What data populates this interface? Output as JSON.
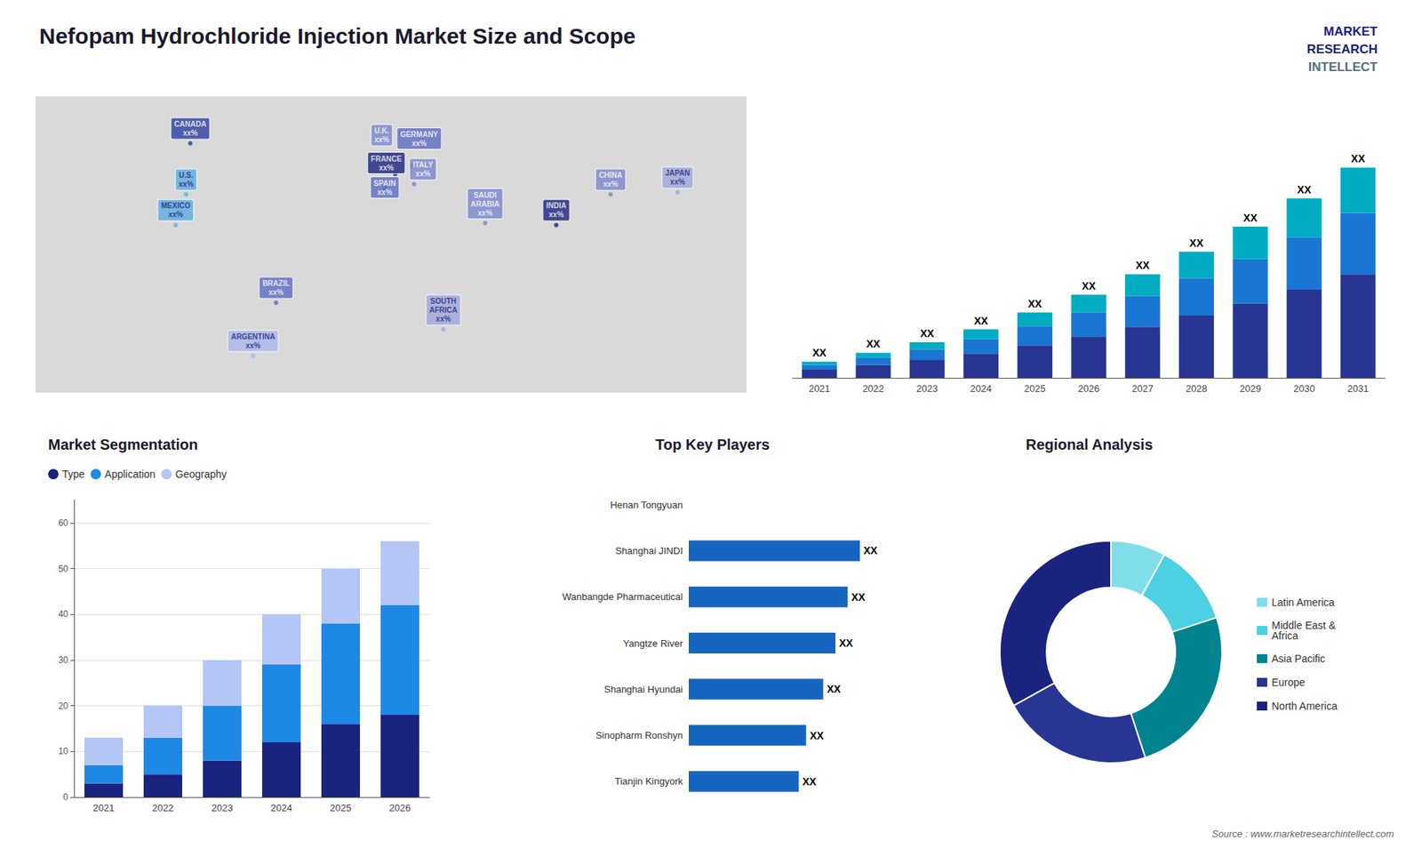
{
  "chart_data": [
    {
      "type": "map",
      "title": "Nefopam Hydrochloride Injection Market Size and Scope",
      "annotations": [
        "MARKET",
        "RESEARCH",
        "INTELLECT",
        "Source : www.marketresearchintellect.com"
      ],
      "categories": [
        "CANADA\nxx%",
        "U.S.\nxx%",
        "MEXICO\nxx%",
        "BRAZIL\nxx%",
        "ARGENTINA\nxx%",
        "FRANCE\nxx%",
        "SPAIN\nxx%",
        "U.K.\nxx%",
        "GERMANY\nxx%",
        "ITALY\nxx%",
        "SAUDI\nARABIA\nxx%",
        "SOUTH\nAFRICA\nxx%",
        "CHINA\nxx%",
        "INDIA\nxx%",
        "JAPAN\nxx%"
      ],
      "x": [
        -96,
        -98,
        -103,
        -55,
        -66,
        2,
        -3,
        -1,
        10,
        11,
        45,
        25,
        105,
        79,
        137
      ],
      "values": [
        62,
        37,
        22,
        -16,
        -42,
        47,
        40,
        56,
        51,
        42,
        23,
        -29,
        37,
        22,
        38
      ],
      "colors": [
        "#2c3e9e",
        "#5dade2",
        "#5dade2",
        "#5c6bc0",
        "#aab6ea",
        "#1a237e",
        "#5c6bc0",
        "#7986cb",
        "#5c6bc0",
        "#7986cb",
        "#7986cb",
        "#9fa8da",
        "#7986cb",
        "#1a237e",
        "#9fa8da"
      ],
      "color": "#d9d9d9",
      "xlim": [
        -170,
        170
      ],
      "ylim": [
        -60,
        85
      ],
      "tick_labels": false
    },
    {
      "type": "bar",
      "categories": [
        "2021",
        "2022",
        "2023",
        "2024",
        "2025",
        "2026",
        "2027",
        "2028",
        "2029",
        "2030",
        "2031"
      ],
      "series": [
        {
          "color": "#283593",
          "values": [
            1.0,
            1.6,
            2.2,
            3.0,
            4.0,
            5.1,
            6.3,
            7.7,
            9.2,
            10.9,
            12.8
          ]
        },
        {
          "color": "#1976d2",
          "values": [
            0.6,
            0.9,
            1.3,
            1.8,
            2.4,
            3.0,
            3.8,
            4.6,
            5.5,
            6.5,
            7.6
          ]
        },
        {
          "color": "#00acc1",
          "values": [
            0.4,
            0.6,
            0.9,
            1.2,
            1.7,
            2.2,
            2.7,
            3.3,
            4.0,
            4.8,
            5.6
          ]
        }
      ],
      "annotations": [
        "XX",
        "XX",
        "XX",
        "XX",
        "XX",
        "XX",
        "XX",
        "XX",
        "XX",
        "XX",
        "XX"
      ],
      "stacked": true,
      "ylim": [
        0,
        33
      ],
      "tick_labels": "x"
    },
    {
      "type": "bar",
      "title": "Market Segmentation",
      "categories": [
        "2021",
        "2022",
        "2023",
        "2024",
        "2025",
        "2026"
      ],
      "series": [
        {
          "name": "Type",
          "color": "#1a237e",
          "values": [
            3,
            5,
            8,
            12,
            16,
            18
          ]
        },
        {
          "name": "Application",
          "color": "#1e88e5",
          "values": [
            4,
            8,
            12,
            17,
            22,
            24
          ]
        },
        {
          "name": "Geography",
          "color": "#b3c6f5",
          "values": [
            6,
            7,
            10,
            11,
            12,
            14
          ]
        }
      ],
      "stacked": true,
      "ylim": [
        0,
        65
      ],
      "yticks": [
        0,
        10,
        20,
        30,
        40,
        50,
        60
      ],
      "grid": true,
      "legend": "upper left",
      "marker": "circle"
    },
    {
      "type": "bar",
      "title": "Top Key Players",
      "orientation": "horizontal",
      "categories": [
        "Henan Tongyuan",
        "Shanghai JINDI",
        "Wanbangde Pharmaceutical",
        "Yangtze River",
        "Shanghai Hyundai",
        "Sinopharm Ronshyn",
        "Tianjin Kingyork"
      ],
      "values": [
        0,
        7.0,
        6.5,
        6.0,
        5.5,
        4.8,
        4.5
      ],
      "value_labels": [
        null,
        "XX",
        "XX",
        "XX",
        "XX",
        "XX",
        "XX"
      ],
      "color": "#1565c0",
      "xlim": [
        0,
        10
      ],
      "tick_labels": "y"
    },
    {
      "type": "donut",
      "title": "Regional Analysis",
      "categories": [
        "Latin America",
        "Middle East &\nAfrica",
        "Asia Pacific",
        "Europe",
        "North America"
      ],
      "values": [
        8,
        12,
        25,
        22,
        33
      ],
      "colors": [
        "#80deea",
        "#4dd0e1",
        "#00838f",
        "#283593",
        "#1a237e"
      ],
      "legend": "right"
    }
  ]
}
